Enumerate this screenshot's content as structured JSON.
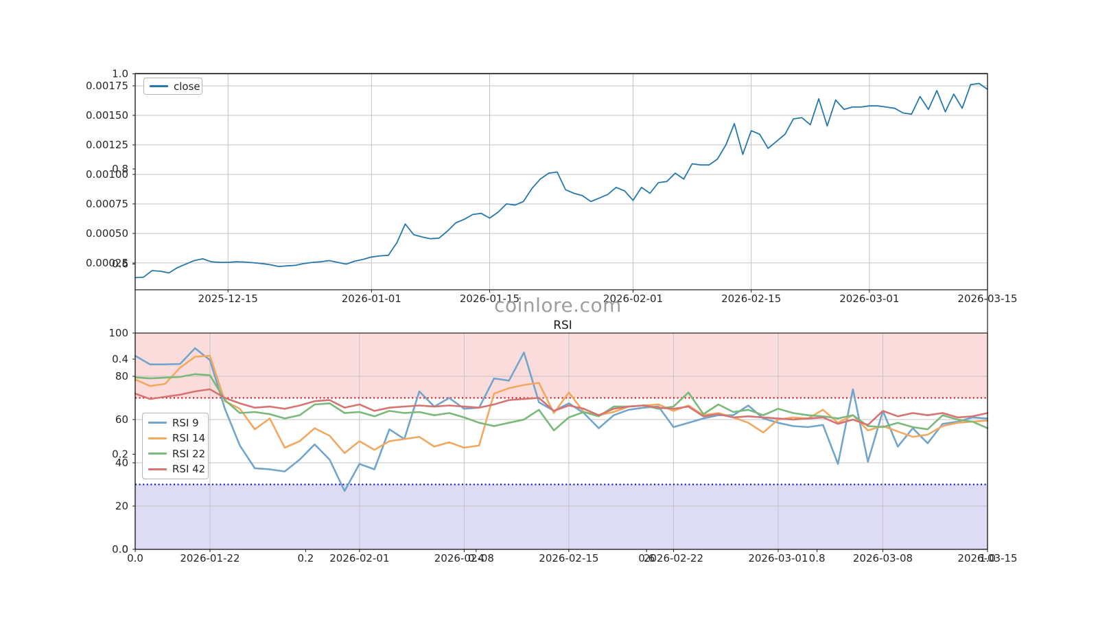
{
  "watermark": "coinlore.com",
  "price_chart": {
    "type": "line",
    "legend_label": "close",
    "line_color": "#2478ac",
    "start_date": "2025-12-04",
    "end_date": "2026-03-15",
    "ylim": [
      2.28e-05,
      0.0018546
    ],
    "yticks": [
      "0.00025",
      "0.00050",
      "0.00075",
      "0.00100",
      "0.00125",
      "0.00150",
      "0.00175"
    ],
    "ytick_values": [
      0.00025,
      0.0005,
      0.00075,
      0.001,
      0.00125,
      0.0015,
      0.00175
    ],
    "xticks": [
      "2025-12-15",
      "2026-01-01",
      "2026-01-15",
      "2026-02-01",
      "2026-02-15",
      "2026-03-01",
      "2026-03-15"
    ],
    "values": [
      0.000125,
      0.00013,
      0.000185,
      0.00018,
      0.000165,
      0.00021,
      0.00024,
      0.00027,
      0.000285,
      0.00026,
      0.000255,
      0.000255,
      0.00026,
      0.000258,
      0.000252,
      0.000245,
      0.000235,
      0.00022,
      0.000225,
      0.00023,
      0.000245,
      0.000255,
      0.00026,
      0.00027,
      0.000255,
      0.00024,
      0.000265,
      0.00028,
      0.0003,
      0.00031,
      0.000315,
      0.00042,
      0.00058,
      0.00049,
      0.00047,
      0.000455,
      0.00046,
      0.00052,
      0.00059,
      0.00062,
      0.00066,
      0.00067,
      0.00063,
      0.00068,
      0.00075,
      0.00074,
      0.00077,
      0.00088,
      0.00096,
      0.00101,
      0.00102,
      0.00087,
      0.00084,
      0.00082,
      0.00077,
      0.0008,
      0.00083,
      0.00089,
      0.00086,
      0.00078,
      0.00089,
      0.00084,
      0.00093,
      0.00094,
      0.00101,
      0.00096,
      0.00109,
      0.00108,
      0.00108,
      0.00113,
      0.00125,
      0.00143,
      0.00117,
      0.00137,
      0.00134,
      0.00122,
      0.00128,
      0.00134,
      0.00147,
      0.00148,
      0.00142,
      0.00164,
      0.00141,
      0.00163,
      0.00155,
      0.00157,
      0.00157,
      0.00158,
      0.00158,
      0.00157,
      0.00156,
      0.00152,
      0.00151,
      0.00166,
      0.00155,
      0.00171,
      0.00153,
      0.00168,
      0.00156,
      0.00176,
      0.00177,
      0.00172
    ]
  },
  "rsi_chart": {
    "type": "line",
    "title": "RSI",
    "start_date": "2026-01-17",
    "end_date": "2026-03-15",
    "ylim": [
      0,
      100
    ],
    "yticks": [
      0,
      20,
      40,
      60,
      80,
      100
    ],
    "xticks": [
      "2026-01-22",
      "2026-02-01",
      "2026-02-08",
      "2026-02-15",
      "2026-02-22",
      "2026-03-01",
      "2026-03-08",
      "2026-03-15"
    ],
    "overbought_level": 70,
    "oversold_level": 30,
    "overbought_line_color": "#e00000",
    "oversold_line_color": "#0000a8",
    "overbought_band_color": "#fbdcdc",
    "oversold_band_color": "#dedcf5",
    "series": [
      {
        "name": "RSI 9",
        "color": "#72a5cc",
        "values": [
          89.5,
          85.5,
          85.5,
          85.7,
          93,
          87.5,
          65,
          48,
          37.5,
          37,
          36,
          41.5,
          48.5,
          41.5,
          27,
          39.5,
          37,
          55.5,
          51,
          73,
          66,
          70,
          65,
          65.5,
          79,
          78,
          91,
          68,
          64,
          67.5,
          63,
          56,
          62,
          64.5,
          65.5,
          66,
          56.5,
          58.5,
          60.5,
          62,
          62,
          66.5,
          60.5,
          58.5,
          57,
          56.5,
          57.5,
          39.5,
          74,
          40.5,
          64,
          47.5,
          56,
          49,
          58,
          59,
          61,
          60.5
        ]
      },
      {
        "name": "RSI 14",
        "color": "#f3a860",
        "values": [
          78.5,
          75.5,
          76.5,
          84,
          89,
          89.5,
          68.5,
          65,
          55.5,
          60.5,
          47,
          50,
          56,
          52.5,
          44.5,
          50,
          46,
          50,
          51,
          52,
          47.5,
          49.5,
          47,
          48,
          72,
          74.5,
          76,
          77,
          63,
          72.5,
          63.5,
          62,
          63.5,
          66,
          66.5,
          67,
          64,
          66.5,
          62,
          63,
          61,
          58.5,
          54,
          60,
          61,
          60.5,
          64.5,
          58.5,
          62,
          55,
          57,
          54.5,
          52,
          53,
          57,
          58.5,
          59,
          59.5
        ]
      },
      {
        "name": "RSI 22",
        "color": "#79b979",
        "values": [
          79.5,
          79,
          79.4,
          79.7,
          81,
          80.5,
          69,
          63,
          63.5,
          62.5,
          60.5,
          62,
          67,
          67.5,
          63,
          63.5,
          61.5,
          64,
          63,
          63.5,
          62,
          63,
          61,
          58.5,
          57,
          58.5,
          60,
          64.5,
          55,
          61,
          63.5,
          61.5,
          66,
          66,
          66.5,
          65,
          66,
          72.5,
          62.5,
          67,
          63.5,
          64.5,
          62,
          65,
          63,
          62,
          61.5,
          60.5,
          62,
          57,
          56.5,
          58.5,
          56.5,
          55.5,
          62,
          60,
          59,
          56
        ]
      },
      {
        "name": "RSI 42",
        "color": "#d67472",
        "values": [
          72,
          69.5,
          70.5,
          71.5,
          73,
          74,
          70,
          67.5,
          65.5,
          66,
          65,
          66.5,
          68.5,
          69,
          65.5,
          67,
          64,
          65.5,
          66,
          66.5,
          66,
          66.5,
          66,
          65.5,
          67,
          69,
          69.5,
          70,
          64,
          66.5,
          65,
          62,
          65,
          66,
          66.5,
          65.5,
          65,
          66,
          61.5,
          62.5,
          61,
          61.5,
          61,
          60.5,
          60,
          60.5,
          61,
          58,
          60,
          57.5,
          64,
          61.5,
          63,
          62,
          63,
          61,
          61.5,
          63
        ]
      }
    ]
  },
  "overlay_axis": {
    "xticks": [
      "0.0",
      "0.2",
      "0.4",
      "0.6",
      "0.8",
      "1.0"
    ],
    "yticks": [
      "0.0",
      "0.2",
      "0.4",
      "0.6",
      "0.8",
      "1.0"
    ]
  }
}
